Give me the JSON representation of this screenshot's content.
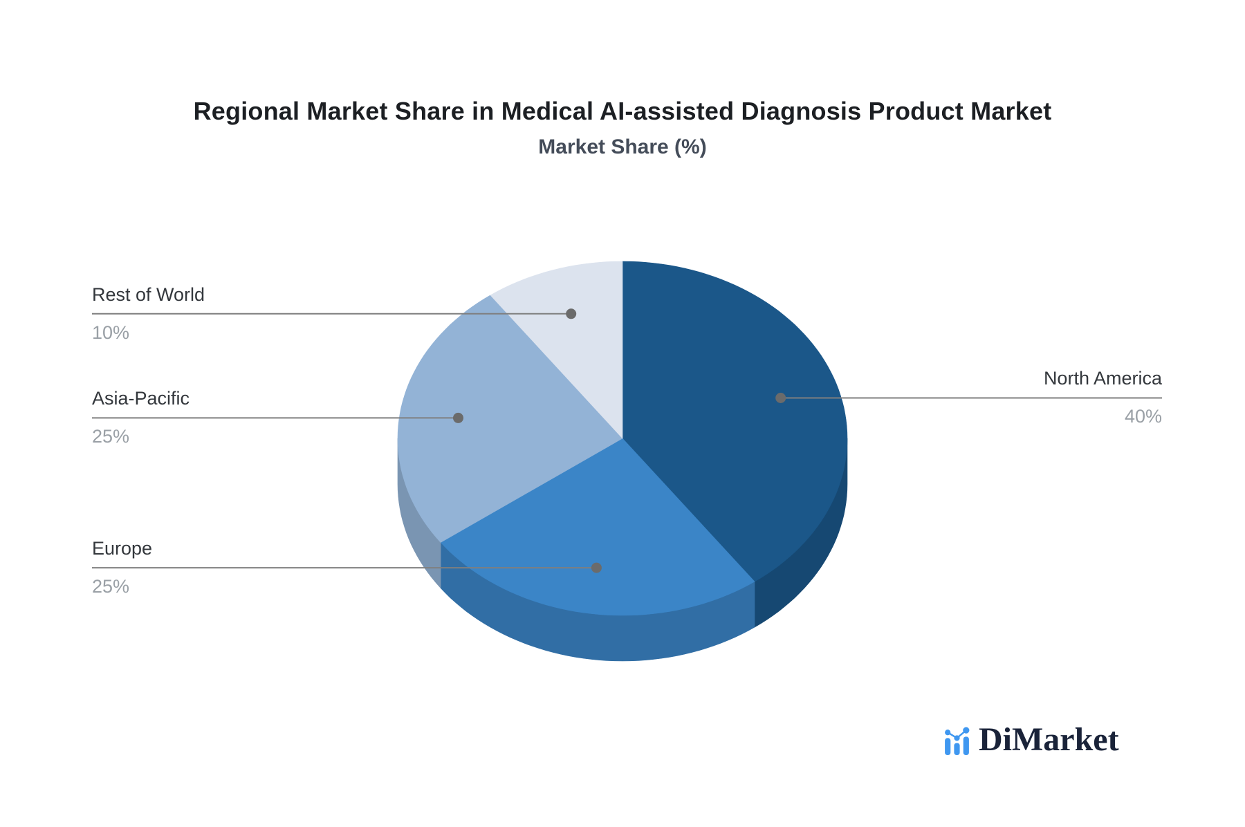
{
  "chart_data": {
    "type": "pie",
    "style": "3d",
    "title": "Regional Market Share in Medical AI-assisted Diagnosis Product Market",
    "subtitle": "Market Share (%)",
    "unit": "%",
    "start_angle_deg": 0,
    "direction": "clockwise",
    "slices": [
      {
        "label": "North America",
        "value": 40,
        "display": "40%",
        "color": "#1b5789",
        "side": "right"
      },
      {
        "label": "Europe",
        "value": 25,
        "display": "25%",
        "color": "#3b85c7",
        "side": "left"
      },
      {
        "label": "Asia-Pacific",
        "value": 25,
        "display": "25%",
        "color": "#93b3d6",
        "side": "left"
      },
      {
        "label": "Rest of World",
        "value": 10,
        "display": "10%",
        "color": "#dce3ee",
        "side": "left"
      }
    ],
    "legend_position": "none",
    "leader_line_color": "#7f7f7f",
    "leader_dot_color": "#6b6b6b",
    "label_color": "#33373c",
    "value_color": "#9aa0a6",
    "background": "#ffffff"
  },
  "branding": {
    "name": "DiMarket",
    "icon": "bar-line-chart-icon",
    "icon_color": "#3f97f0",
    "text_color": "#1a2339"
  }
}
